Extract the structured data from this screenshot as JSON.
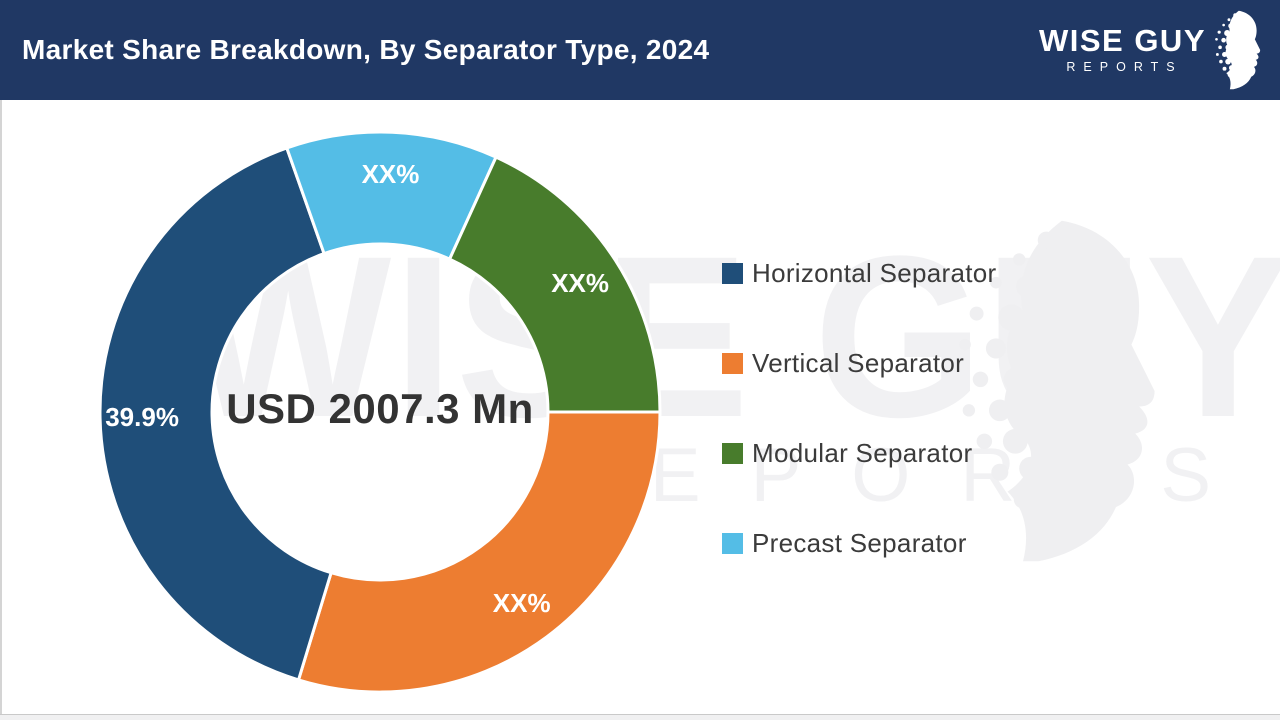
{
  "header": {
    "title": "Market Share Breakdown, By Separator Type, 2024",
    "header_bg_color": "#203864",
    "logo": {
      "line1": "WISE GUY",
      "line2": "REPORTS"
    }
  },
  "watermark": {
    "line1": "WISE GUY",
    "line2": "REPORTS"
  },
  "chart_data": {
    "type": "pie",
    "subtype": "donut",
    "title": "Market Share Breakdown, By Separator Type, 2024",
    "center_label": "USD 2007.3 Mn",
    "donut_hole_ratio": 0.6,
    "start_angle_deg": 0,
    "direction": "clockwise",
    "legend_position": "right",
    "draw_order": [
      1,
      0,
      3,
      2
    ],
    "segments": [
      {
        "name": "Horizontal Separator",
        "label": "39.9%",
        "share_pct_est": 39.9,
        "color": "#1F4E79"
      },
      {
        "name": "Vertical Separator",
        "label": "XX%",
        "share_pct_est": 29.7,
        "color": "#ED7D31"
      },
      {
        "name": "Modular Separator",
        "label": "XX%",
        "share_pct_est": 18.2,
        "color": "#487C2C"
      },
      {
        "name": "Precast Separator",
        "label": "XX%",
        "share_pct_est": 12.2,
        "color": "#54BDE6"
      }
    ],
    "colors": {
      "segment_label_text": "#ffffff",
      "center_label_text": "#333333",
      "separator_stroke": "#ffffff"
    }
  }
}
